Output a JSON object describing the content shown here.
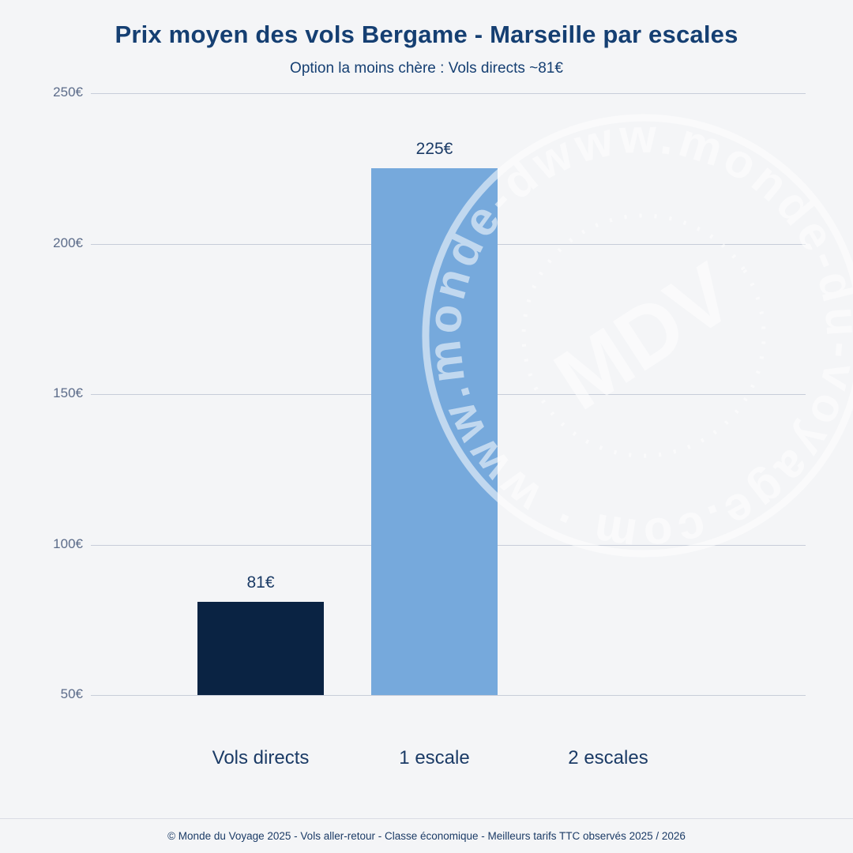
{
  "title": "Prix moyen des vols Bergame - Marseille par escales",
  "subtitle": "Option la moins chère : Vols directs ~81€",
  "footer": {
    "text": "© Monde du Voyage 2025 - Vols aller-retour - Classe économique - Meilleurs tarifs TTC observés 2025 / 2026"
  },
  "watermark": {
    "circle_text": "www.monde-du-voyage.com · www.monde-du-voyage.com ·",
    "center_text": "MDV"
  },
  "colors": {
    "background": "#f4f5f7",
    "title": "#153f72",
    "bar_dark": "#0a2343",
    "bar_light": "#76a9dc",
    "gridline": "#c7cdd9",
    "axis_label": "#5c6c8a",
    "label_text": "#1b3b66"
  },
  "chart_data": {
    "type": "bar",
    "title": "Prix moyen des vols Bergame - Marseille par escales",
    "subtitle": "Option la moins chère : Vols directs ~81€",
    "categories": [
      "Vols directs",
      "1 escale",
      "2 escales"
    ],
    "values": [
      81,
      225,
      null
    ],
    "value_labels": [
      "81€",
      "225€",
      ""
    ],
    "bar_colors": [
      "#0a2343",
      "#76a9dc",
      null
    ],
    "xlabel": "",
    "ylabel": "",
    "ylim": [
      50,
      250
    ],
    "yticks": [
      250,
      200,
      150,
      100,
      50
    ],
    "ytick_labels": [
      "250€",
      "200€",
      "150€",
      "100€",
      "50€"
    ],
    "grid": true,
    "legend": false,
    "currency": "€"
  }
}
